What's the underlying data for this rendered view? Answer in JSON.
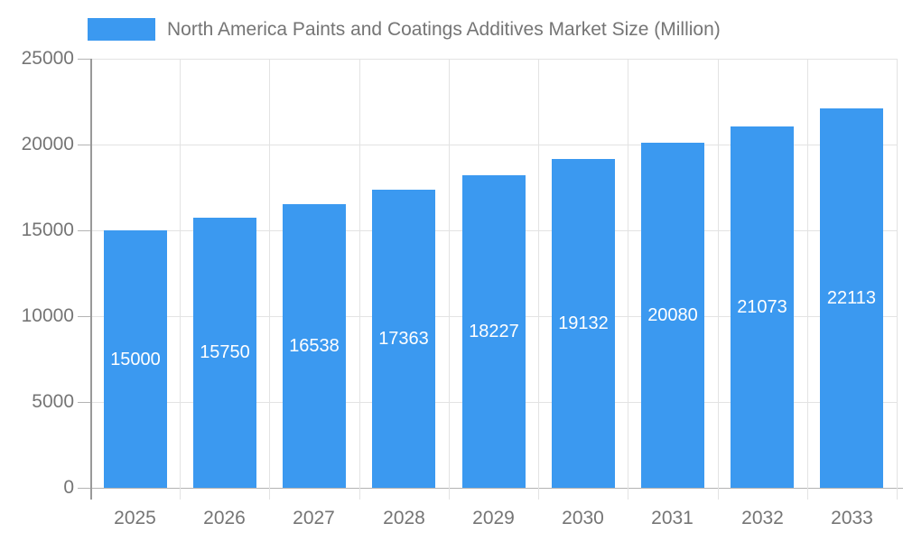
{
  "legend": {
    "label": "North America Paints and Coatings Additives Market Size (Million)"
  },
  "chart_data": {
    "type": "bar",
    "title": "North America Paints and Coatings Additives Market Size (Million)",
    "categories": [
      "2025",
      "2026",
      "2027",
      "2028",
      "2029",
      "2030",
      "2031",
      "2032",
      "2033"
    ],
    "values": [
      15000,
      15750,
      16538,
      17363,
      18227,
      19132,
      20080,
      21073,
      22113
    ],
    "data_labels": [
      "15000",
      "15750",
      "16538",
      "17363",
      "18227",
      "19132",
      "20080",
      "21073",
      "22113"
    ],
    "xlabel": "",
    "ylabel": "",
    "ylim": [
      0,
      25000
    ],
    "yticks": [
      0,
      5000,
      10000,
      15000,
      20000,
      25000
    ],
    "ytick_labels": [
      "0",
      "5000",
      "10000",
      "15000",
      "20000",
      "25000"
    ],
    "grid": true,
    "legend_position": "top-left"
  },
  "colors": {
    "bar": "#3b99f0",
    "bar_label": "#ffffff",
    "grid": "#e3e3e3",
    "axis_line": "#999999",
    "baseline": "#b3b3b3",
    "tick_text": "#757575",
    "legend_text": "#757575"
  }
}
